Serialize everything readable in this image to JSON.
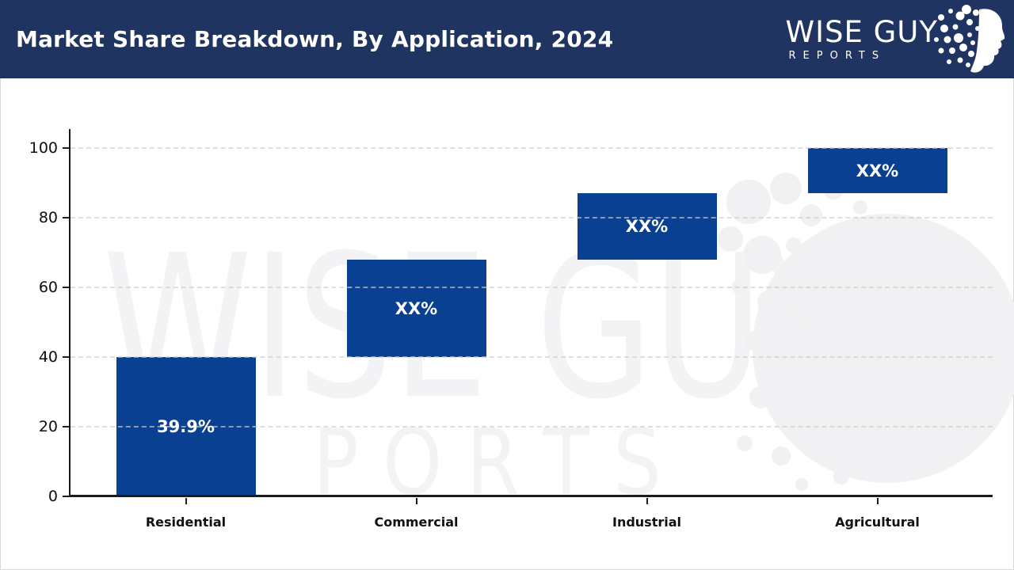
{
  "header": {
    "title": "Market Share Breakdown, By Application, 2024",
    "logo": {
      "wordmark": "WISE GUY",
      "sub": "REPORTS"
    }
  },
  "watermark": {
    "line1": "WISE GUY",
    "line2": "P O R T S"
  },
  "colors": {
    "header_bg": "#203462",
    "bar": "#0a4091",
    "grid": "#cdcdcd",
    "axis": "#1c1c1c",
    "watermark": "#f3f3f5",
    "bar_label": "#ffffff"
  },
  "chart_data": {
    "type": "bar",
    "subtype": "waterfall",
    "title": "Market Share Breakdown, By Application, 2024",
    "xlabel": "",
    "ylabel": "",
    "categories": [
      "Residential",
      "Commercial",
      "Industrial",
      "Agricultural"
    ],
    "segments": [
      {
        "category": "Residential",
        "start": 0,
        "end": 39.9,
        "label": "39.9%"
      },
      {
        "category": "Commercial",
        "start": 39.9,
        "end": 68.0,
        "label": "XX%"
      },
      {
        "category": "Industrial",
        "start": 68.0,
        "end": 87.0,
        "label": "XX%"
      },
      {
        "category": "Agricultural",
        "start": 87.0,
        "end": 100.0,
        "label": "XX%"
      }
    ],
    "yticks": [
      0,
      20,
      40,
      60,
      80,
      100
    ],
    "ylim": [
      0,
      105
    ],
    "grid": "horizontal dashed",
    "legend": null,
    "bar_color": "#0a4091"
  }
}
